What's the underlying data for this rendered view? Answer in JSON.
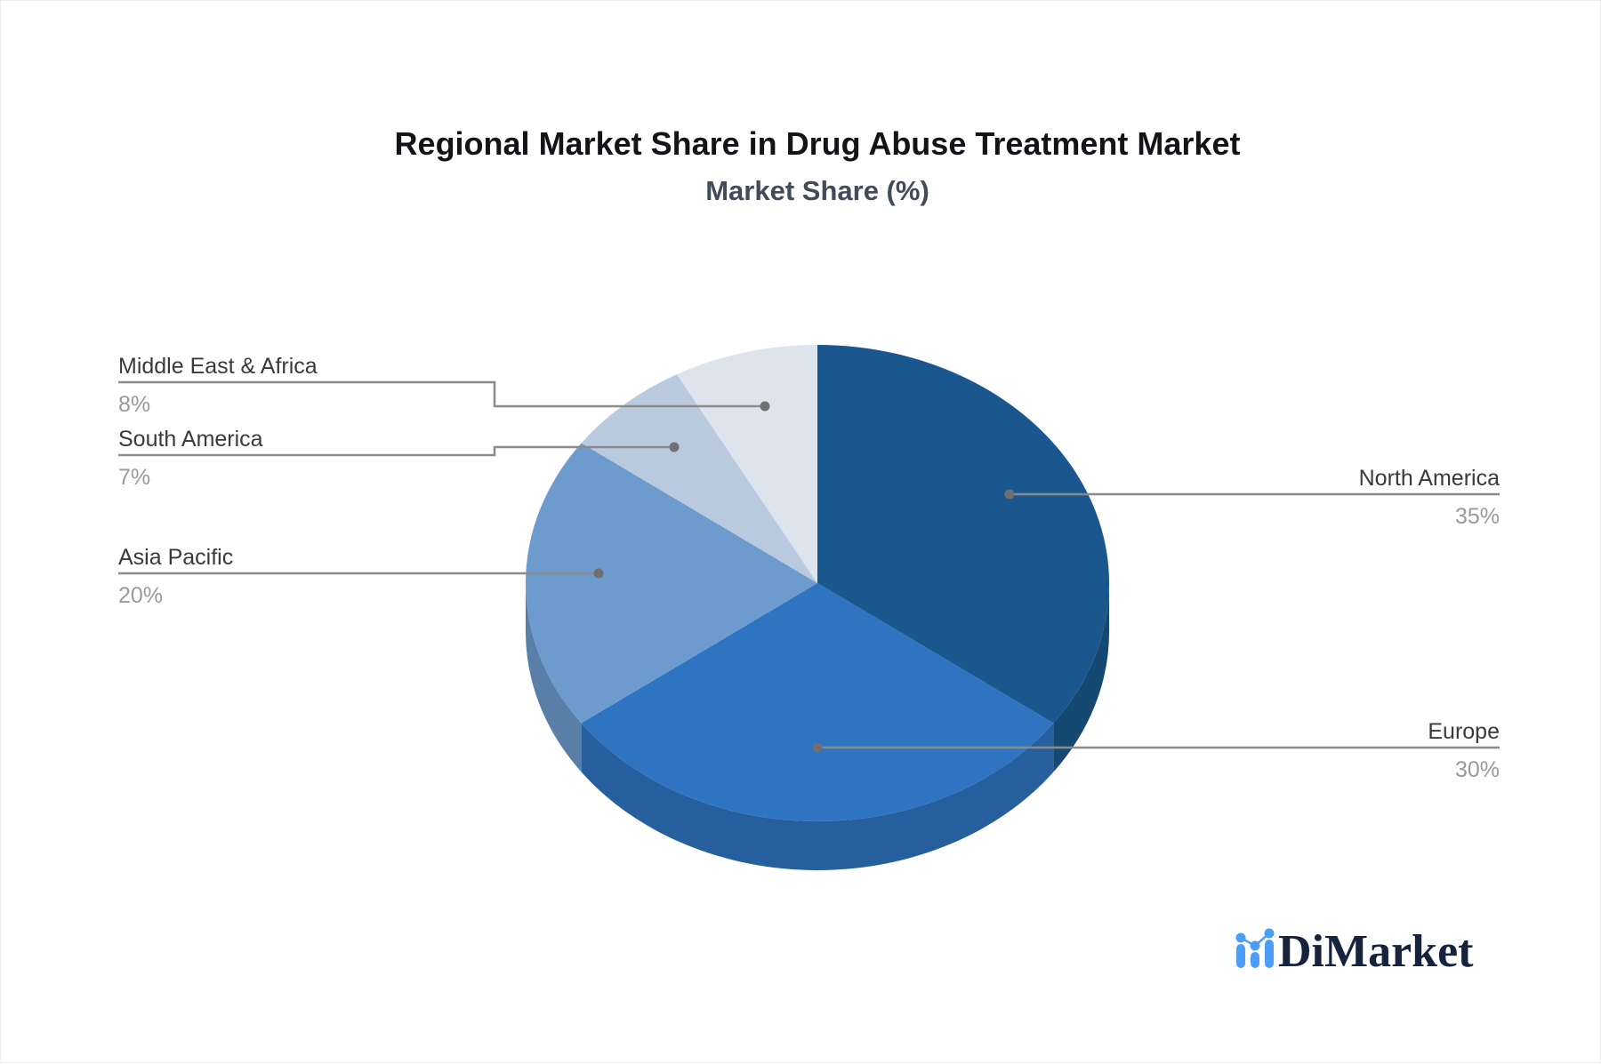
{
  "header": {
    "title": "Regional Market Share in Drug Abuse Treatment Market",
    "subtitle": "Market Share (%)",
    "title_color": "#121417",
    "subtitle_color": "#414B5A"
  },
  "chart_data": {
    "type": "pie",
    "style": "3d",
    "title": "Regional Market Share in Drug Abuse Treatment Market",
    "subtitle": "Market Share (%)",
    "unit": "%",
    "start_angle_deg": 0,
    "direction": "clockwise",
    "legend_position": "leader-line-labels",
    "categories": [
      "North America",
      "Europe",
      "Asia Pacific",
      "South America",
      "Middle East & Africa"
    ],
    "values": [
      35,
      30,
      20,
      7,
      8
    ],
    "slices": [
      {
        "label": "North America",
        "value": 35,
        "pct_label": "35%",
        "color": "#1A578F",
        "side_color": "#164971"
      },
      {
        "label": "Europe",
        "value": 30,
        "pct_label": "30%",
        "color": "#2E74C0",
        "side_color": "#265F9E"
      },
      {
        "label": "Asia Pacific",
        "value": 20,
        "pct_label": "20%",
        "color": "#6D9BCE",
        "side_color": "#597FA9"
      },
      {
        "label": "South America",
        "value": 7,
        "pct_label": "7%",
        "color": "#B9CADF",
        "side_color": "#9AA9BC"
      },
      {
        "label": "Middle East & Africa",
        "value": 8,
        "pct_label": "8%",
        "color": "#DDE4EE",
        "side_color": "#B8C0CC"
      }
    ],
    "label_color": "#3A3A3A",
    "pct_color": "#9A9A9A",
    "leader_line_color": "#8B8B8B",
    "leader_dot_color": "#6F6F6F"
  },
  "logo": {
    "text": "DiMarket",
    "text_color": "#16233C",
    "icon": "bar-chart-trend-icon",
    "icon_color": "#4A9EF5"
  }
}
